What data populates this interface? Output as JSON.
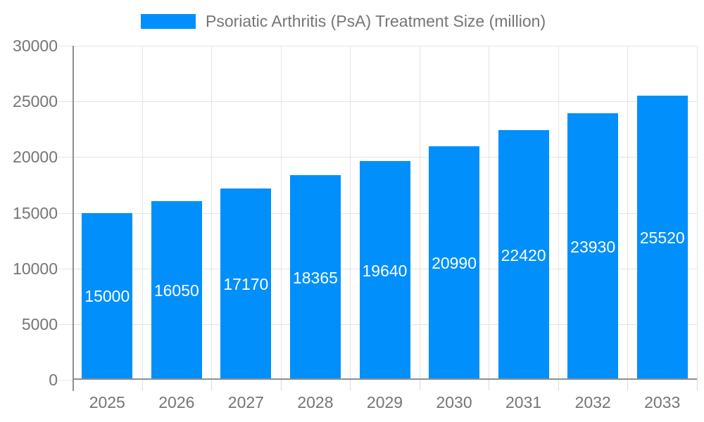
{
  "legend": {
    "label": "Psoriatic Arthritis (PsA) Treatment Size (million)"
  },
  "chart_data": {
    "type": "bar",
    "title": "",
    "series_name": "Psoriatic Arthritis (PsA) Treatment Size (million)",
    "categories": [
      "2025",
      "2026",
      "2027",
      "2028",
      "2029",
      "2030",
      "2031",
      "2032",
      "2033"
    ],
    "values": [
      15000,
      16050,
      17170,
      18365,
      19640,
      20990,
      22420,
      23930,
      25520
    ],
    "value_labels_shown": true,
    "xlabel": "",
    "ylabel": "",
    "ylim": [
      0,
      30000
    ],
    "yticks": [
      0,
      5000,
      10000,
      15000,
      20000,
      25000,
      30000
    ],
    "grid": true,
    "legend_position": "top",
    "colors": {
      "bar": "#008FFB",
      "value_label": "#ffffff",
      "axis_text": "#757575",
      "axis_line": "#8e8e8e",
      "gridline": "#e4e4e4",
      "tick": "#d9d9d9",
      "background": "#ffffff"
    }
  }
}
